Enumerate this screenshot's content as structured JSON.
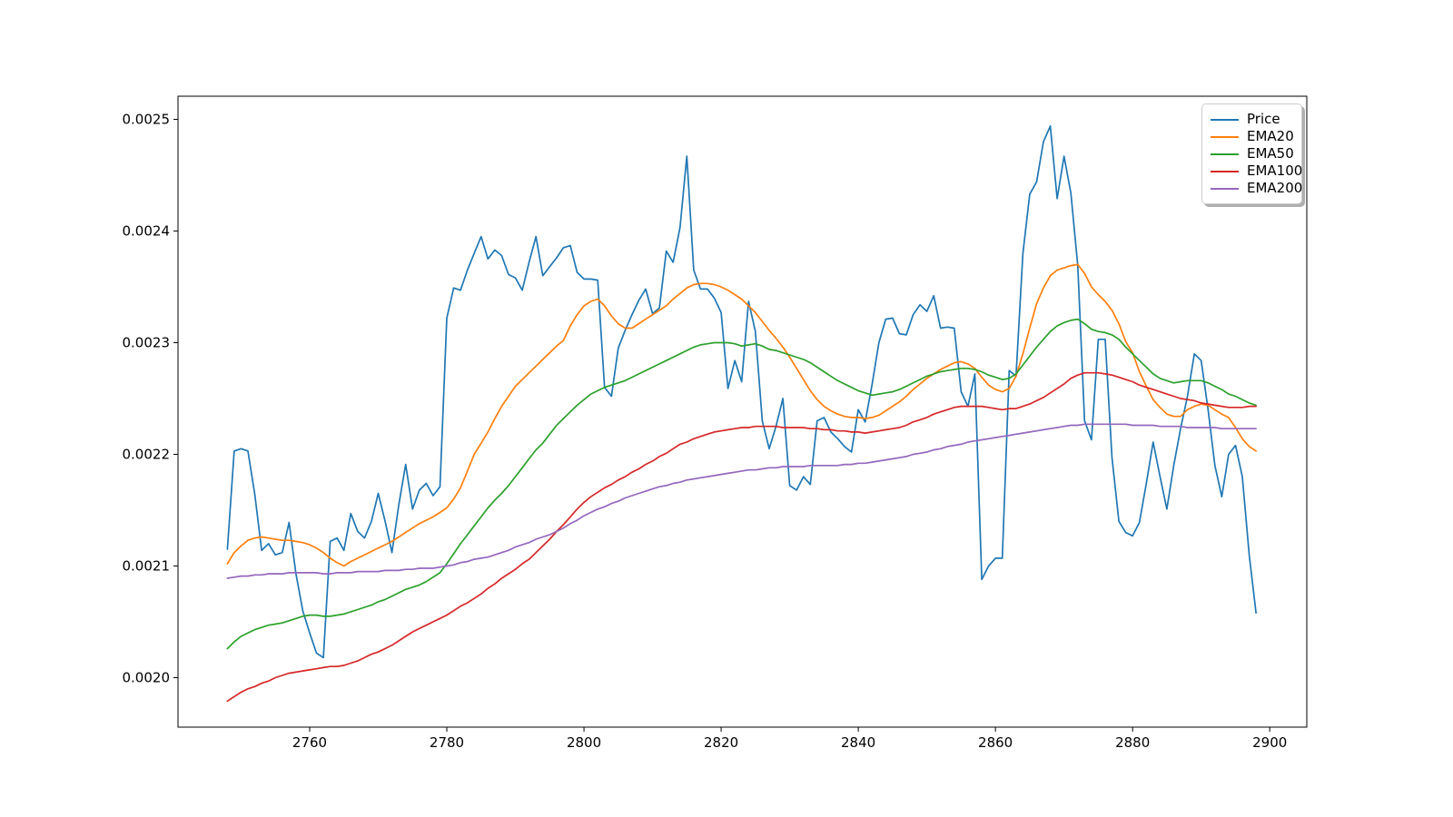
{
  "chart_data": {
    "type": "line",
    "title": "",
    "xlabel": "",
    "ylabel": "",
    "grid": false,
    "legend_position": "upper right",
    "xlim": [
      2740.8,
      2905.4
    ],
    "ylim": [
      0.0019557,
      0.0025207
    ],
    "x_ticks": [
      2760,
      2780,
      2800,
      2820,
      2840,
      2860,
      2880,
      2900
    ],
    "y_ticks": [
      0.002,
      0.0021,
      0.0022,
      0.0023,
      0.0024,
      0.0025
    ],
    "y_tick_labels": [
      "0.0020",
      "0.0021",
      "0.0022",
      "0.0023",
      "0.0024",
      "0.0025"
    ],
    "x_start": 2748,
    "x_step": 1,
    "axis_color": "#000000",
    "series": [
      {
        "name": "Price",
        "color": "#1f77b4",
        "y": [
          0.002115,
          0.002203,
          0.002205,
          0.002203,
          0.002164,
          0.002114,
          0.00212,
          0.00211,
          0.002112,
          0.002139,
          0.002093,
          0.00206,
          0.00204,
          0.002022,
          0.002018,
          0.002122,
          0.002125,
          0.002114,
          0.002147,
          0.002131,
          0.002125,
          0.00214,
          0.002165,
          0.00214,
          0.002112,
          0.002155,
          0.002191,
          0.002151,
          0.002168,
          0.002174,
          0.002163,
          0.002171,
          0.002322,
          0.002349,
          0.002347,
          0.002365,
          0.00238,
          0.002395,
          0.002375,
          0.002383,
          0.002378,
          0.002361,
          0.002358,
          0.002347,
          0.002372,
          0.002395,
          0.00236,
          0.002368,
          0.002376,
          0.002385,
          0.002387,
          0.002363,
          0.002357,
          0.002357,
          0.002356,
          0.00226,
          0.002252,
          0.002295,
          0.002311,
          0.002325,
          0.002338,
          0.002348,
          0.002326,
          0.002331,
          0.002382,
          0.002372,
          0.002403,
          0.002467,
          0.002365,
          0.002348,
          0.002348,
          0.00234,
          0.002327,
          0.002259,
          0.002284,
          0.002265,
          0.002337,
          0.00231,
          0.00223,
          0.002205,
          0.002225,
          0.00225,
          0.002172,
          0.002168,
          0.00218,
          0.002173,
          0.00223,
          0.002233,
          0.00222,
          0.002214,
          0.002207,
          0.002202,
          0.00224,
          0.002229,
          0.002262,
          0.0023,
          0.002321,
          0.002322,
          0.002308,
          0.002307,
          0.002325,
          0.002334,
          0.002328,
          0.002342,
          0.002313,
          0.002314,
          0.002313,
          0.002256,
          0.002243,
          0.002272,
          0.002088,
          0.0021,
          0.002107,
          0.002107,
          0.002275,
          0.00227,
          0.00238,
          0.002433,
          0.002444,
          0.00248,
          0.002494,
          0.002429,
          0.002467,
          0.002434,
          0.002369,
          0.00223,
          0.002213,
          0.002303,
          0.002303,
          0.002197,
          0.00214,
          0.00213,
          0.002127,
          0.002139,
          0.002174,
          0.002211,
          0.00218,
          0.002151,
          0.00219,
          0.002223,
          0.002252,
          0.00229,
          0.002284,
          0.00224,
          0.00219,
          0.002162,
          0.0022,
          0.002208,
          0.00218,
          0.00211,
          0.002058
        ]
      },
      {
        "name": "EMA20",
        "color": "#ff7f0e",
        "y": [
          0.002102,
          0.002112,
          0.002118,
          0.002123,
          0.002125,
          0.002126,
          0.002125,
          0.002124,
          0.002123,
          0.002123,
          0.002122,
          0.002121,
          0.002119,
          0.002116,
          0.002112,
          0.002107,
          0.002103,
          0.0021,
          0.002104,
          0.002107,
          0.00211,
          0.002113,
          0.002116,
          0.002119,
          0.002122,
          0.002126,
          0.00213,
          0.002134,
          0.002138,
          0.002141,
          0.002144,
          0.002148,
          0.002152,
          0.00216,
          0.00217,
          0.002185,
          0.0022,
          0.00221,
          0.00222,
          0.002232,
          0.002243,
          0.002252,
          0.002261,
          0.002267,
          0.002273,
          0.002279,
          0.002285,
          0.002291,
          0.002297,
          0.002302,
          0.002315,
          0.002325,
          0.002333,
          0.002337,
          0.002339,
          0.002333,
          0.002324,
          0.002317,
          0.002313,
          0.002313,
          0.002317,
          0.002321,
          0.002325,
          0.002329,
          0.002333,
          0.002339,
          0.002344,
          0.002349,
          0.002352,
          0.002353,
          0.002353,
          0.002352,
          0.00235,
          0.002347,
          0.002343,
          0.002339,
          0.002333,
          0.002327,
          0.002319,
          0.002311,
          0.002304,
          0.002296,
          0.002287,
          0.002277,
          0.002267,
          0.002257,
          0.002249,
          0.002243,
          0.002239,
          0.002236,
          0.002234,
          0.002233,
          0.002233,
          0.002232,
          0.002233,
          0.002235,
          0.002239,
          0.002243,
          0.002247,
          0.002252,
          0.002258,
          0.002263,
          0.002268,
          0.002272,
          0.002276,
          0.002279,
          0.002282,
          0.002283,
          0.002281,
          0.002277,
          0.002269,
          0.002262,
          0.002258,
          0.002256,
          0.002259,
          0.00227,
          0.00229,
          0.002313,
          0.002335,
          0.002349,
          0.00236,
          0.002365,
          0.002367,
          0.002369,
          0.00237,
          0.002362,
          0.00235,
          0.002343,
          0.002337,
          0.002329,
          0.002317,
          0.002301,
          0.002291,
          0.002274,
          0.002261,
          0.002249,
          0.002242,
          0.002236,
          0.002234,
          0.002234,
          0.00224,
          0.002243,
          0.002245,
          0.002244,
          0.00224,
          0.002236,
          0.002233,
          0.002224,
          0.002214,
          0.002207,
          0.002203
        ]
      },
      {
        "name": "EMA50",
        "color": "#2ca02c",
        "y": [
          0.002026,
          0.002032,
          0.002037,
          0.00204,
          0.002043,
          0.002045,
          0.002047,
          0.002048,
          0.002049,
          0.002051,
          0.002053,
          0.002055,
          0.002056,
          0.002056,
          0.002055,
          0.002055,
          0.002056,
          0.002057,
          0.002059,
          0.002061,
          0.002063,
          0.002065,
          0.002068,
          0.00207,
          0.002073,
          0.002076,
          0.002079,
          0.002081,
          0.002083,
          0.002086,
          0.00209,
          0.002094,
          0.002102,
          0.002111,
          0.00212,
          0.002128,
          0.002136,
          0.002144,
          0.002152,
          0.002159,
          0.002165,
          0.002172,
          0.00218,
          0.002188,
          0.002196,
          0.002204,
          0.00221,
          0.002218,
          0.002226,
          0.002232,
          0.002238,
          0.002244,
          0.002249,
          0.002254,
          0.002257,
          0.00226,
          0.002262,
          0.002264,
          0.002266,
          0.002269,
          0.002272,
          0.002275,
          0.002278,
          0.002281,
          0.002284,
          0.002287,
          0.00229,
          0.002293,
          0.002296,
          0.002298,
          0.002299,
          0.0023,
          0.0023,
          0.0023,
          0.002299,
          0.002297,
          0.002298,
          0.002299,
          0.002297,
          0.002294,
          0.002293,
          0.002291,
          0.002289,
          0.002287,
          0.002285,
          0.002282,
          0.002278,
          0.002274,
          0.00227,
          0.002266,
          0.002263,
          0.00226,
          0.002257,
          0.002255,
          0.002253,
          0.002254,
          0.002255,
          0.002256,
          0.002258,
          0.002261,
          0.002264,
          0.002267,
          0.00227,
          0.002272,
          0.002274,
          0.002275,
          0.002276,
          0.002277,
          0.002277,
          0.002276,
          0.002274,
          0.002271,
          0.002269,
          0.002267,
          0.002268,
          0.002272,
          0.00228,
          0.002288,
          0.002296,
          0.002303,
          0.00231,
          0.002315,
          0.002318,
          0.00232,
          0.002321,
          0.002317,
          0.002312,
          0.00231,
          0.002309,
          0.002307,
          0.002303,
          0.002296,
          0.00229,
          0.002284,
          0.002278,
          0.002272,
          0.002268,
          0.002266,
          0.002264,
          0.002265,
          0.002266,
          0.002266,
          0.002266,
          0.002264,
          0.002261,
          0.002258,
          0.002254,
          0.002252,
          0.002249,
          0.002246,
          0.002244
        ]
      },
      {
        "name": "EMA100",
        "color": "#d62728",
        "y": [
          0.001979,
          0.001983,
          0.001987,
          0.00199,
          0.001992,
          0.001995,
          0.001997,
          0.002,
          0.002002,
          0.002004,
          0.002005,
          0.002006,
          0.002007,
          0.002008,
          0.002009,
          0.00201,
          0.00201,
          0.002011,
          0.002013,
          0.002015,
          0.002018,
          0.002021,
          0.002023,
          0.002026,
          0.002029,
          0.002033,
          0.002037,
          0.002041,
          0.002044,
          0.002047,
          0.00205,
          0.002053,
          0.002056,
          0.00206,
          0.002064,
          0.002067,
          0.002071,
          0.002075,
          0.00208,
          0.002084,
          0.002089,
          0.002093,
          0.002097,
          0.002102,
          0.002106,
          0.002112,
          0.002118,
          0.002124,
          0.002131,
          0.002137,
          0.002144,
          0.002151,
          0.002157,
          0.002162,
          0.002166,
          0.00217,
          0.002173,
          0.002177,
          0.00218,
          0.002184,
          0.002187,
          0.002191,
          0.002194,
          0.002198,
          0.002201,
          0.002205,
          0.002209,
          0.002211,
          0.002214,
          0.002216,
          0.002218,
          0.00222,
          0.002221,
          0.002222,
          0.002223,
          0.002224,
          0.002224,
          0.002225,
          0.002225,
          0.002225,
          0.002225,
          0.002224,
          0.002224,
          0.002224,
          0.002224,
          0.002223,
          0.002223,
          0.002222,
          0.002222,
          0.002221,
          0.002221,
          0.00222,
          0.00222,
          0.002219,
          0.00222,
          0.002221,
          0.002222,
          0.002223,
          0.002224,
          0.002226,
          0.002229,
          0.002231,
          0.002233,
          0.002236,
          0.002238,
          0.00224,
          0.002242,
          0.002243,
          0.002243,
          0.002243,
          0.002243,
          0.002242,
          0.002241,
          0.00224,
          0.002241,
          0.002241,
          0.002243,
          0.002245,
          0.002248,
          0.002251,
          0.002255,
          0.002259,
          0.002263,
          0.002268,
          0.002271,
          0.002273,
          0.002273,
          0.002273,
          0.002272,
          0.002271,
          0.002269,
          0.002267,
          0.002265,
          0.002262,
          0.00226,
          0.002258,
          0.002256,
          0.002254,
          0.002252,
          0.00225,
          0.002249,
          0.002248,
          0.002246,
          0.002245,
          0.002244,
          0.002243,
          0.002242,
          0.002242,
          0.002242,
          0.002243,
          0.002243
        ]
      },
      {
        "name": "EMA200",
        "color": "#9467bd",
        "y": [
          0.002089,
          0.00209,
          0.002091,
          0.002091,
          0.002092,
          0.002092,
          0.002093,
          0.002093,
          0.002093,
          0.002094,
          0.002094,
          0.002094,
          0.002094,
          0.002094,
          0.002093,
          0.002093,
          0.002094,
          0.002094,
          0.002094,
          0.002095,
          0.002095,
          0.002095,
          0.002095,
          0.002096,
          0.002096,
          0.002096,
          0.002097,
          0.002097,
          0.002098,
          0.002098,
          0.002098,
          0.002099,
          0.0021,
          0.002101,
          0.002103,
          0.002104,
          0.002106,
          0.002107,
          0.002108,
          0.00211,
          0.002112,
          0.002114,
          0.002117,
          0.002119,
          0.002121,
          0.002124,
          0.002126,
          0.002128,
          0.002131,
          0.002134,
          0.002138,
          0.002141,
          0.002145,
          0.002148,
          0.002151,
          0.002153,
          0.002156,
          0.002158,
          0.002161,
          0.002163,
          0.002165,
          0.002167,
          0.002169,
          0.002171,
          0.002172,
          0.002174,
          0.002175,
          0.002177,
          0.002178,
          0.002179,
          0.00218,
          0.002181,
          0.002182,
          0.002183,
          0.002184,
          0.002185,
          0.002186,
          0.002186,
          0.002187,
          0.002188,
          0.002188,
          0.002189,
          0.002189,
          0.002189,
          0.002189,
          0.00219,
          0.00219,
          0.00219,
          0.00219,
          0.00219,
          0.002191,
          0.002191,
          0.002192,
          0.002192,
          0.002193,
          0.002194,
          0.002195,
          0.002196,
          0.002197,
          0.002198,
          0.0022,
          0.002201,
          0.002202,
          0.002204,
          0.002205,
          0.002207,
          0.002208,
          0.002209,
          0.002211,
          0.002212,
          0.002213,
          0.002214,
          0.002215,
          0.002216,
          0.002217,
          0.002218,
          0.002219,
          0.00222,
          0.002221,
          0.002222,
          0.002223,
          0.002224,
          0.002225,
          0.002226,
          0.002226,
          0.002227,
          0.002227,
          0.002227,
          0.002227,
          0.002227,
          0.002227,
          0.002227,
          0.002226,
          0.002226,
          0.002226,
          0.002226,
          0.002225,
          0.002225,
          0.002225,
          0.002225,
          0.002224,
          0.002224,
          0.002224,
          0.002224,
          0.002224,
          0.002223,
          0.002223,
          0.002223,
          0.002223,
          0.002223,
          0.002223
        ]
      }
    ]
  }
}
